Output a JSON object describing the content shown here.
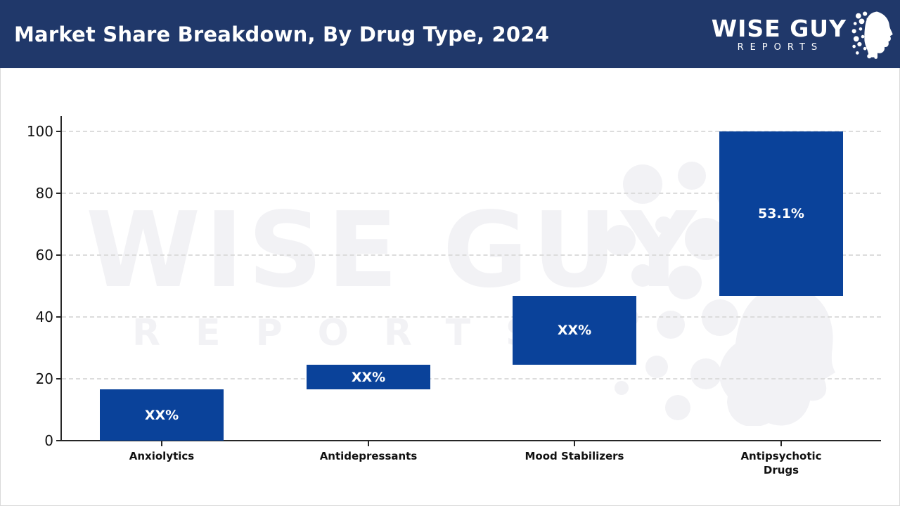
{
  "header": {
    "title": "Market Share Breakdown, By Drug Type, 2024",
    "logo": {
      "brand_line1": "WISE GUY",
      "brand_line2": "REPORTS",
      "icon": "dotted-head-profile"
    }
  },
  "watermark": {
    "line1": "WISE GUY",
    "line2": "REPORTS",
    "motif": "dotted-head-profile"
  },
  "colors": {
    "header_bg": "#20386a",
    "bar": "#0a429a",
    "bar_label": "#ffffff",
    "grid": "#dcdcdc",
    "axis": "#262626",
    "tick_text": "#111111",
    "watermark": "#f2f2f5",
    "border": "#d9d9d9"
  },
  "chart_data": {
    "type": "bar",
    "subtype": "waterfall",
    "title": "Market Share Breakdown, By Drug Type, 2024",
    "unit": "%",
    "categories": [
      "Anxiolytics",
      "Antidepressants",
      "Mood Stabilizers",
      "Antipsychotic Drugs"
    ],
    "tick_labels": [
      "Anxiolytics",
      "Antidepressants",
      "Mood Stabilizers",
      "Antipsychotic\nDrugs"
    ],
    "segments": [
      {
        "category": "Anxiolytics",
        "start": 0,
        "end": 16.5,
        "label": "XX%"
      },
      {
        "category": "Antidepressants",
        "start": 16.5,
        "end": 24.6,
        "label": "XX%"
      },
      {
        "category": "Mood Stabilizers",
        "start": 24.6,
        "end": 46.9,
        "label": "XX%"
      },
      {
        "category": "Antipsychotic Drugs",
        "start": 46.9,
        "end": 100,
        "label": "53.1%"
      }
    ],
    "value_labels": [
      "XX%",
      "XX%",
      "XX%",
      "53.1%"
    ],
    "yticks": [
      0,
      20,
      40,
      60,
      80,
      100
    ],
    "ylim": [
      0,
      105
    ],
    "xlabel": "",
    "ylabel": "",
    "grid": "horizontal-dashed",
    "legend": "none"
  }
}
